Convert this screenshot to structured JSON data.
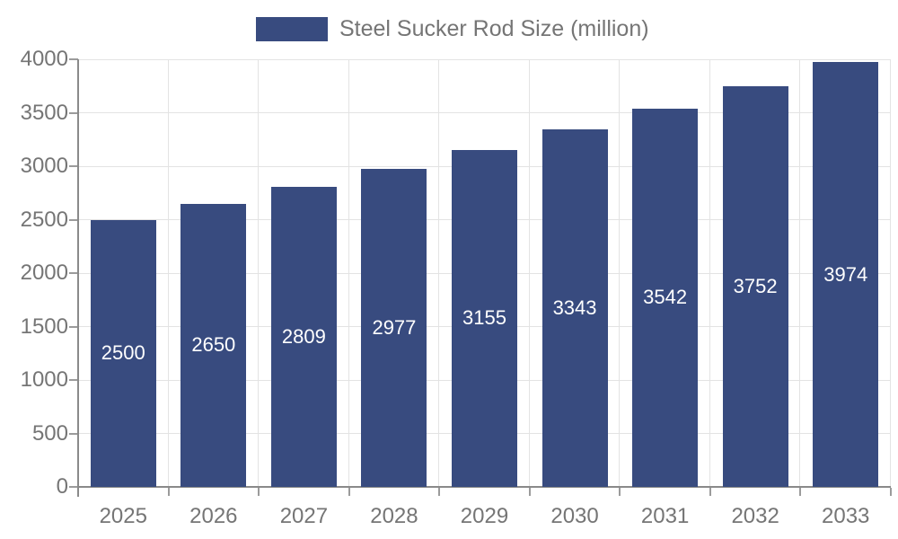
{
  "chart_data": {
    "type": "bar",
    "title": "Steel Sucker Rod Size (million)",
    "categories": [
      "2025",
      "2026",
      "2027",
      "2028",
      "2029",
      "2030",
      "2031",
      "2032",
      "2033"
    ],
    "values": [
      2500,
      2650,
      2809,
      2977,
      3155,
      3343,
      3542,
      3752,
      3974
    ],
    "bar_labels": [
      "2500",
      "2650",
      "2809",
      "2977",
      "3155",
      "3343",
      "3542",
      "3752",
      "3974"
    ],
    "xlabel": "",
    "ylabel": "",
    "ylim": [
      0,
      4000
    ],
    "yticks": [
      0,
      500,
      1000,
      1500,
      2000,
      2500,
      3000,
      3500,
      4000
    ],
    "grid": true,
    "legend": {
      "position": "top",
      "label": "Steel Sucker Rod Size (million)"
    },
    "colors": {
      "bar": "#384B7F",
      "bar_label": "#FFFFFF",
      "axis_label": "#757575",
      "legend_label": "#757575",
      "axis_line": "#8A8A8A",
      "tick": "#9B9B9B",
      "grid": "#E3E3E3",
      "background": "#FFFFFF"
    }
  }
}
